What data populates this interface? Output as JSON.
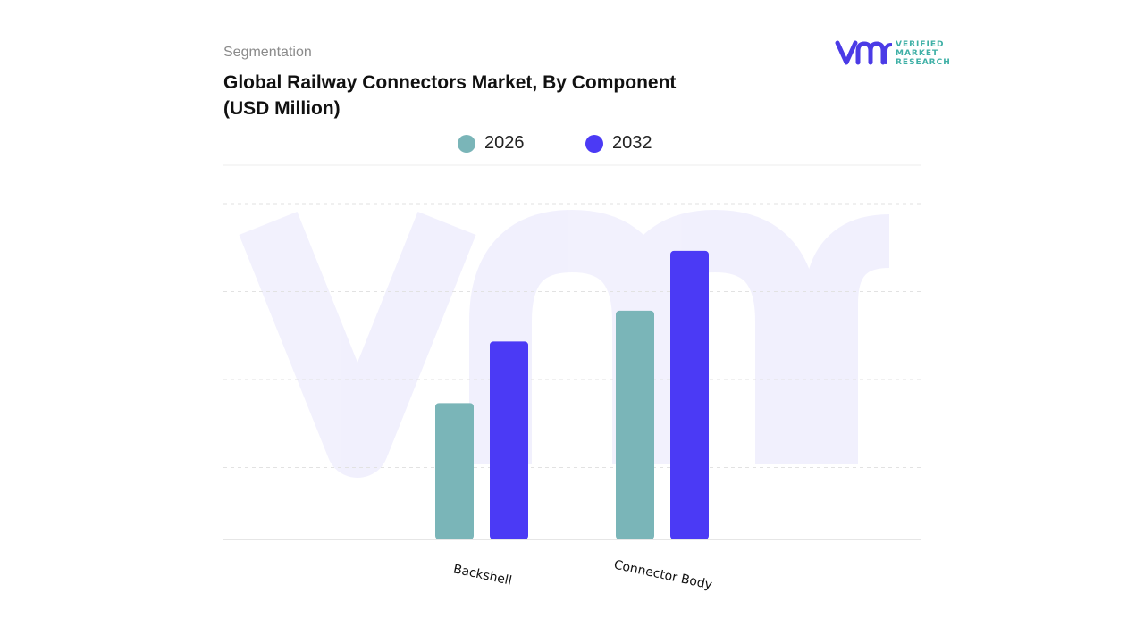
{
  "header": {
    "section_label": "Segmentation",
    "title": "Global Railway Connectors Market, By Component (USD Million)"
  },
  "logo": {
    "mark": "vmr",
    "lines": [
      "VERIFIED",
      "MARKET",
      "RESEARCH"
    ],
    "registered": "®",
    "colors": {
      "mark": "#4b3be6",
      "text": "#3fb0a6"
    }
  },
  "chart_data": {
    "type": "bar",
    "title": "Global Railway Connectors Market, By Component (USD Million)",
    "categories": [
      "Backshell",
      "Connector Body"
    ],
    "series": [
      {
        "name": "2026",
        "color": "#7ab5b8",
        "values": [
          155,
          260
        ]
      },
      {
        "name": "2032",
        "color": "#4b3af5",
        "values": [
          225,
          328
        ]
      }
    ],
    "ylim": [
      0,
      400
    ],
    "grid": true,
    "legend_position": "top-center",
    "xlabel": "",
    "ylabel": ""
  }
}
